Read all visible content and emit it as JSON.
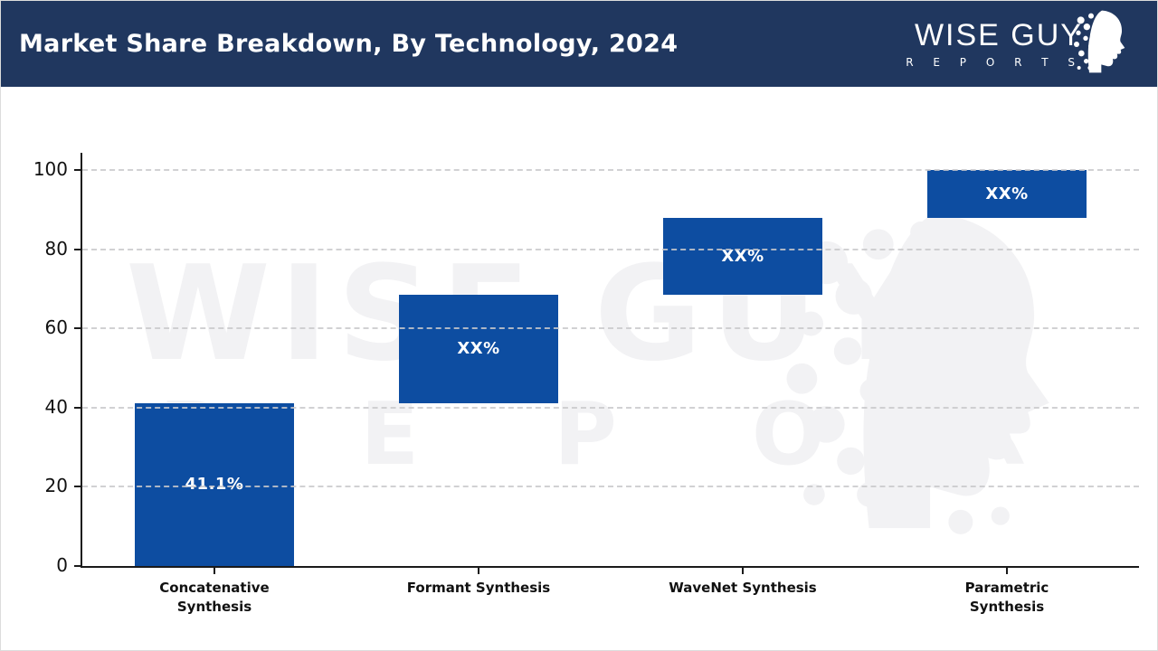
{
  "header": {
    "title": "Market Share Breakdown, By Technology, 2024",
    "bg_color": "#20375f",
    "brand": {
      "line1": "WISE GUY",
      "line2": "R E P O R T S"
    }
  },
  "watermark": {
    "line1": "WISE GUY",
    "line2": "R E P O R T S"
  },
  "colors": {
    "header_bg": "#20375f",
    "bar_fill": "#0d4da1",
    "bar_label": "#ffffff",
    "axis": "#1a1a1a",
    "gridline": "#c9c9cc",
    "watermark": "#f2f2f4"
  },
  "chart_data": {
    "type": "bar",
    "subtype": "waterfall",
    "title": "Market Share Breakdown, By Technology, 2024",
    "categories": [
      "Concatenative\nSynthesis",
      "Formant Synthesis",
      "WaveNet Synthesis",
      "Parametric\nSynthesis"
    ],
    "segments": [
      {
        "category": "Concatenative Synthesis",
        "start": 0,
        "end": 41.1,
        "label": "41.1%"
      },
      {
        "category": "Formant Synthesis",
        "start": 41.1,
        "end": 68.5,
        "label": "XX%"
      },
      {
        "category": "WaveNet Synthesis",
        "start": 68.5,
        "end": 87.8,
        "label": "XX%"
      },
      {
        "category": "Parametric Synthesis",
        "start": 87.8,
        "end": 100,
        "label": "XX%"
      }
    ],
    "xlabel": "",
    "ylabel": "",
    "ylim": [
      0,
      100
    ],
    "yticks": [
      0,
      20,
      40,
      60,
      80,
      100
    ],
    "grid": "dashed-horizontal-above-bars",
    "legend": "none",
    "bar_color": "#0d4da1",
    "value_label_color": "#ffffff"
  }
}
